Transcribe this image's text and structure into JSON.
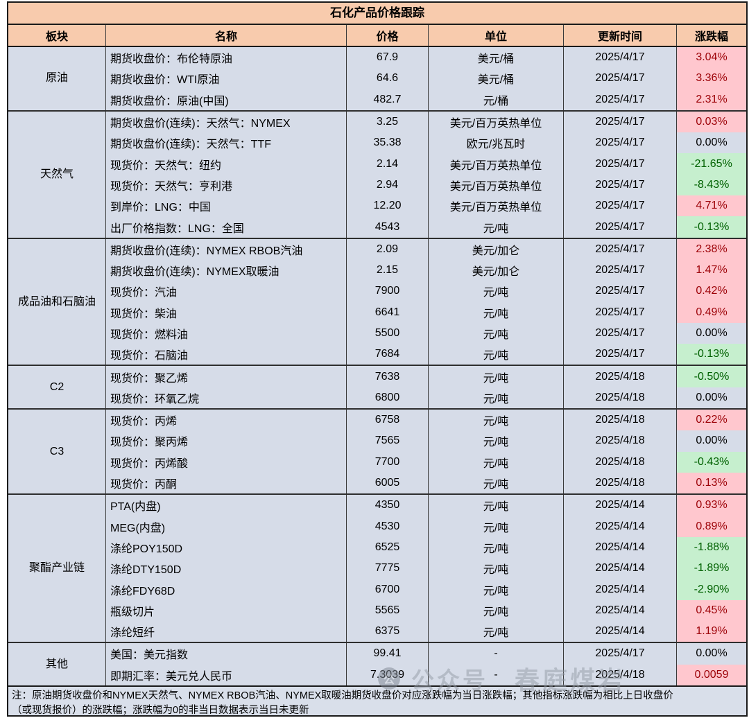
{
  "title": "石化产品价格跟踪",
  "columns": [
    "板块",
    "名称",
    "价格",
    "单位",
    "更新时间",
    "涨跌幅"
  ],
  "sections": [
    {
      "sector": "原油",
      "rows": [
        {
          "name": "期货收盘价：布伦特原油",
          "price": "67.9",
          "unit": "美元/桶",
          "date": "2025/4/17",
          "change": "3.04%",
          "dir": "up"
        },
        {
          "name": "期货收盘价：WTI原油",
          "price": "64.6",
          "unit": "美元/桶",
          "date": "2025/4/17",
          "change": "3.36%",
          "dir": "up"
        },
        {
          "name": "期货收盘价：原油(中国)",
          "price": "482.7",
          "unit": "元/桶",
          "date": "2025/4/17",
          "change": "2.31%",
          "dir": "up"
        }
      ]
    },
    {
      "sector": "天然气",
      "rows": [
        {
          "name": "期货收盘价(连续)：天然气：NYMEX",
          "price": "3.25",
          "unit": "美元/百万英热单位",
          "date": "2025/4/17",
          "change": "0.03%",
          "dir": "up"
        },
        {
          "name": "期货收盘价(连续)：天然气：TTF",
          "price": "35.38",
          "unit": "欧元/兆瓦时",
          "date": "2025/4/17",
          "change": "0.00%",
          "dir": "flat"
        },
        {
          "name": "现货价：天然气：纽约",
          "price": "2.14",
          "unit": "美元/百万英热单位",
          "date": "2025/4/17",
          "change": "-21.65%",
          "dir": "down"
        },
        {
          "name": "现货价：天然气：亨利港",
          "price": "2.94",
          "unit": "美元/百万英热单位",
          "date": "2025/4/17",
          "change": "-8.43%",
          "dir": "down"
        },
        {
          "name": "到岸价：LNG：中国",
          "price": "12.20",
          "unit": "美元/百万英热单位",
          "date": "2025/4/17",
          "change": "4.71%",
          "dir": "up"
        },
        {
          "name": "出厂价格指数：LNG：全国",
          "price": "4543",
          "unit": "元/吨",
          "date": "2025/4/17",
          "change": "-0.13%",
          "dir": "down"
        }
      ]
    },
    {
      "sector": "成品油和石脑油",
      "rows": [
        {
          "name": "期货收盘价(连续)：NYMEX RBOB汽油",
          "price": "2.09",
          "unit": "美元/加仑",
          "date": "2025/4/17",
          "change": "2.38%",
          "dir": "up"
        },
        {
          "name": "期货收盘价(连续)：NYMEX取暖油",
          "price": "2.15",
          "unit": "美元/加仑",
          "date": "2025/4/17",
          "change": "1.47%",
          "dir": "up"
        },
        {
          "name": "现货价：汽油",
          "price": "7900",
          "unit": "元/吨",
          "date": "2025/4/17",
          "change": "0.42%",
          "dir": "up"
        },
        {
          "name": "现货价：柴油",
          "price": "6641",
          "unit": "元/吨",
          "date": "2025/4/17",
          "change": "0.49%",
          "dir": "up"
        },
        {
          "name": "现货价：燃料油",
          "price": "5500",
          "unit": "元/吨",
          "date": "2025/4/17",
          "change": "0.00%",
          "dir": "flat"
        },
        {
          "name": "现货价：石脑油",
          "price": "7684",
          "unit": "元/吨",
          "date": "2025/4/17",
          "change": "-0.13%",
          "dir": "down"
        }
      ]
    },
    {
      "sector": "C2",
      "rows": [
        {
          "name": "现货价：聚乙烯",
          "price": "7638",
          "unit": "元/吨",
          "date": "2025/4/18",
          "change": "-0.50%",
          "dir": "down"
        },
        {
          "name": "现货价：环氧乙烷",
          "price": "6800",
          "unit": "元/吨",
          "date": "2025/4/18",
          "change": "0.00%",
          "dir": "flat"
        }
      ]
    },
    {
      "sector": "C3",
      "rows": [
        {
          "name": "现货价：丙烯",
          "price": "6758",
          "unit": "元/吨",
          "date": "2025/4/18",
          "change": "0.22%",
          "dir": "up"
        },
        {
          "name": "现货价：聚丙烯",
          "price": "7565",
          "unit": "元/吨",
          "date": "2025/4/18",
          "change": "0.00%",
          "dir": "flat"
        },
        {
          "name": "现货价：丙烯酸",
          "price": "7700",
          "unit": "元/吨",
          "date": "2025/4/18",
          "change": "-0.43%",
          "dir": "down"
        },
        {
          "name": "现货价：丙酮",
          "price": "6005",
          "unit": "元/吨",
          "date": "2025/4/18",
          "change": "0.13%",
          "dir": "up"
        }
      ]
    },
    {
      "sector": "聚酯产业链",
      "rows": [
        {
          "name": "PTA(内盘)",
          "price": "4350",
          "unit": "元/吨",
          "date": "2025/4/14",
          "change": "0.93%",
          "dir": "up"
        },
        {
          "name": "MEG(内盘)",
          "price": "4530",
          "unit": "元/吨",
          "date": "2025/4/14",
          "change": "0.89%",
          "dir": "up"
        },
        {
          "name": "涤纶POY150D",
          "price": "6525",
          "unit": "元/吨",
          "date": "2025/4/14",
          "change": "-1.88%",
          "dir": "down"
        },
        {
          "name": "涤纶DTY150D",
          "price": "7775",
          "unit": "元/吨",
          "date": "2025/4/14",
          "change": "-1.89%",
          "dir": "down"
        },
        {
          "name": "涤纶FDY68D",
          "price": "6700",
          "unit": "元/吨",
          "date": "2025/4/14",
          "change": "-2.90%",
          "dir": "down"
        },
        {
          "name": "瓶级切片",
          "price": "5565",
          "unit": "元/吨",
          "date": "2025/4/14",
          "change": "0.45%",
          "dir": "up"
        },
        {
          "name": "涤纶短纤",
          "price": "6375",
          "unit": "元/吨",
          "date": "2025/4/14",
          "change": "1.19%",
          "dir": "up"
        }
      ]
    },
    {
      "sector": "其他",
      "rows": [
        {
          "name": "美国：美元指数",
          "price": "99.41",
          "unit": "-",
          "date": "2025/4/17",
          "change": "0.00%",
          "dir": "flat"
        },
        {
          "name": "即期汇率：美元兑人民币",
          "price": "7.3039",
          "unit": "-",
          "date": "2025/4/18",
          "change": "0.0059",
          "dir": "up"
        }
      ]
    }
  ],
  "footer": {
    "line1": "注：原油期货收盘价和NYMEX天然气、NYMEX RBOB汽油、NYMEX取暖油期货收盘价对应涨跌幅为当日涨跌幅；其他指标涨跌幅为相比上日收盘价",
    "line2": "（或现货报价）的涨跌幅；涨跌幅为0的非当日数据表示当日未更新"
  },
  "watermark": {
    "badge": "公",
    "prefix": "公众号",
    "name": "春庭煤岩"
  },
  "colors": {
    "header_bg": "#F8CBAD",
    "body_bg": "#D6DCE8",
    "up_bg": "#FFC7CE",
    "up_text": "#9C0006",
    "down_bg": "#C6EFCE",
    "down_text": "#006100"
  }
}
